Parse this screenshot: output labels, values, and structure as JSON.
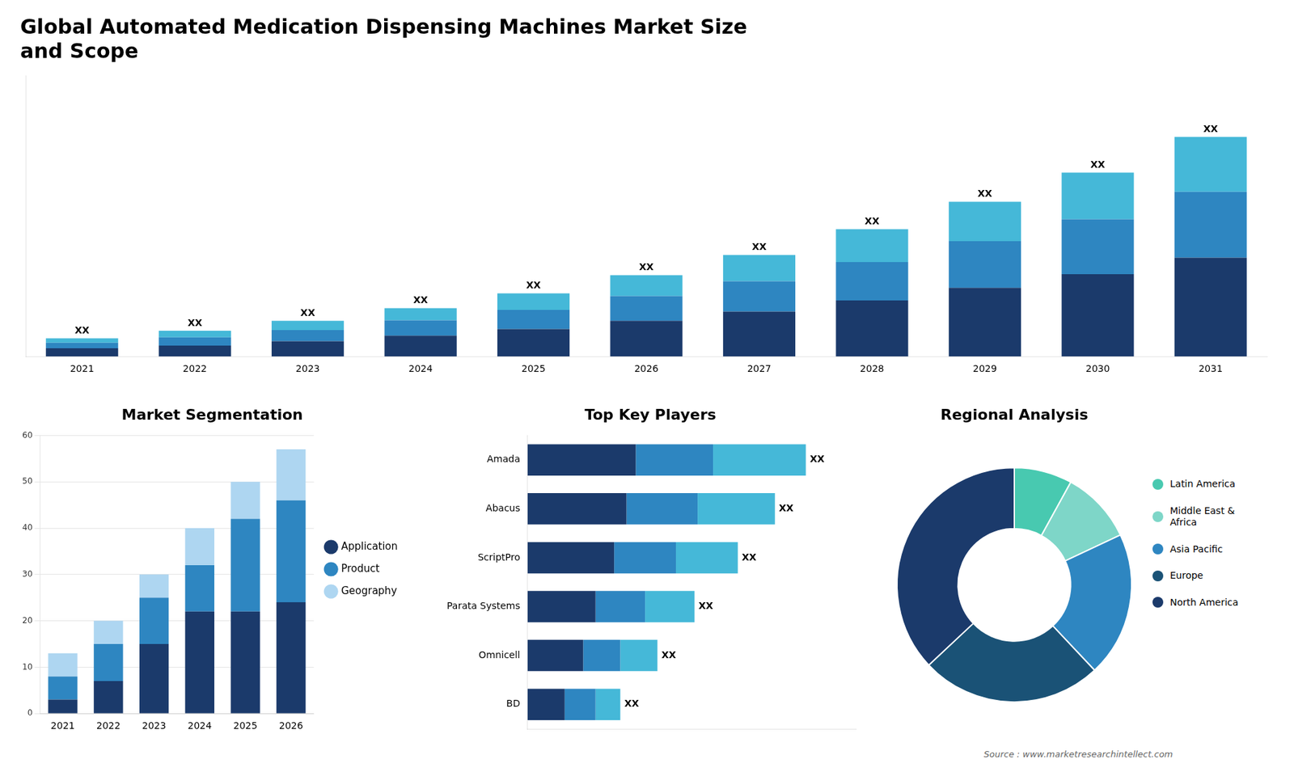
{
  "chart_data": [
    {
      "type": "bar",
      "title": "Global Automated Medication Dispensing Machines Market Size\nand Scope",
      "categories": [
        "2021",
        "2022",
        "2023",
        "2024",
        "2025",
        "2026",
        "2027",
        "2028",
        "2029",
        "2030",
        "2031"
      ],
      "series": [
        {
          "color": "#1b3a6b",
          "values": [
            1.5,
            2.0,
            2.8,
            3.8,
            5.0,
            6.5,
            8.2,
            10.2,
            12.5,
            15.0,
            18.0
          ]
        },
        {
          "color": "#2e86c1",
          "values": [
            1.0,
            1.5,
            2.0,
            2.8,
            3.5,
            4.5,
            5.5,
            7.0,
            8.5,
            10.0,
            12.0
          ]
        },
        {
          "color": "#45b8d8",
          "values": [
            0.8,
            1.2,
            1.7,
            2.2,
            3.0,
            3.8,
            4.8,
            6.0,
            7.2,
            8.5,
            10.0
          ],
          "value_labels": [
            "XX",
            "XX",
            "XX",
            "XX",
            "XX",
            "XX",
            "XX",
            "XX",
            "XX",
            "XX",
            "XX"
          ]
        }
      ],
      "stacked": true,
      "ylim": [
        0,
        51.2
      ],
      "tick_labels": "x",
      "grid": false
    },
    {
      "type": "bar",
      "title": "Market Segmentation",
      "categories": [
        "2021",
        "2022",
        "2023",
        "2024",
        "2025",
        "2026"
      ],
      "series": [
        {
          "name": "Application",
          "color": "#1b3a6b",
          "values": [
            3,
            7,
            15,
            22,
            22,
            24
          ]
        },
        {
          "name": "Product",
          "color": "#2e86c1",
          "values": [
            5,
            8,
            10,
            10,
            20,
            22
          ]
        },
        {
          "name": "Geography",
          "color": "#aed6f1",
          "values": [
            5,
            5,
            5,
            8,
            8,
            11
          ]
        }
      ],
      "stacked": true,
      "ylim": [
        0,
        60
      ],
      "yticks": [
        0,
        10,
        20,
        30,
        40,
        50,
        60
      ],
      "grid": true,
      "legend": "right"
    },
    {
      "type": "bar",
      "title": "Top Key Players",
      "orientation": "horizontal",
      "categories": [
        "Amada",
        "Abacus",
        "ScriptPro",
        "Parata Systems",
        "Omnicell",
        "BD"
      ],
      "series": [
        {
          "color": "#1b3a6b",
          "values": [
            35,
            32,
            28,
            22,
            18,
            12
          ]
        },
        {
          "color": "#2e86c1",
          "values": [
            25,
            23,
            20,
            16,
            12,
            10
          ]
        },
        {
          "color": "#45b8d8",
          "values": [
            30,
            25,
            20,
            16,
            12,
            8
          ],
          "value_labels": [
            "XX",
            "XX",
            "XX",
            "XX",
            "XX",
            "XX"
          ]
        }
      ],
      "stacked": true,
      "xlim": [
        0,
        106.2
      ],
      "tick_labels": "y",
      "grid": false
    },
    {
      "type": "doughnut",
      "title": "Regional Analysis",
      "categories": [
        "Latin America",
        "Middle East &\nAfrica",
        "Asia Pacific",
        "Europe",
        "North America"
      ],
      "values": [
        8,
        10,
        20,
        25,
        37
      ],
      "colors": [
        "#48c9b0",
        "#7ed6c8",
        "#2e86c1",
        "#1a5276",
        "#1b3a6b"
      ],
      "legend": "right",
      "annotations": [
        "Source : www.marketresearchintellect.com"
      ]
    }
  ]
}
